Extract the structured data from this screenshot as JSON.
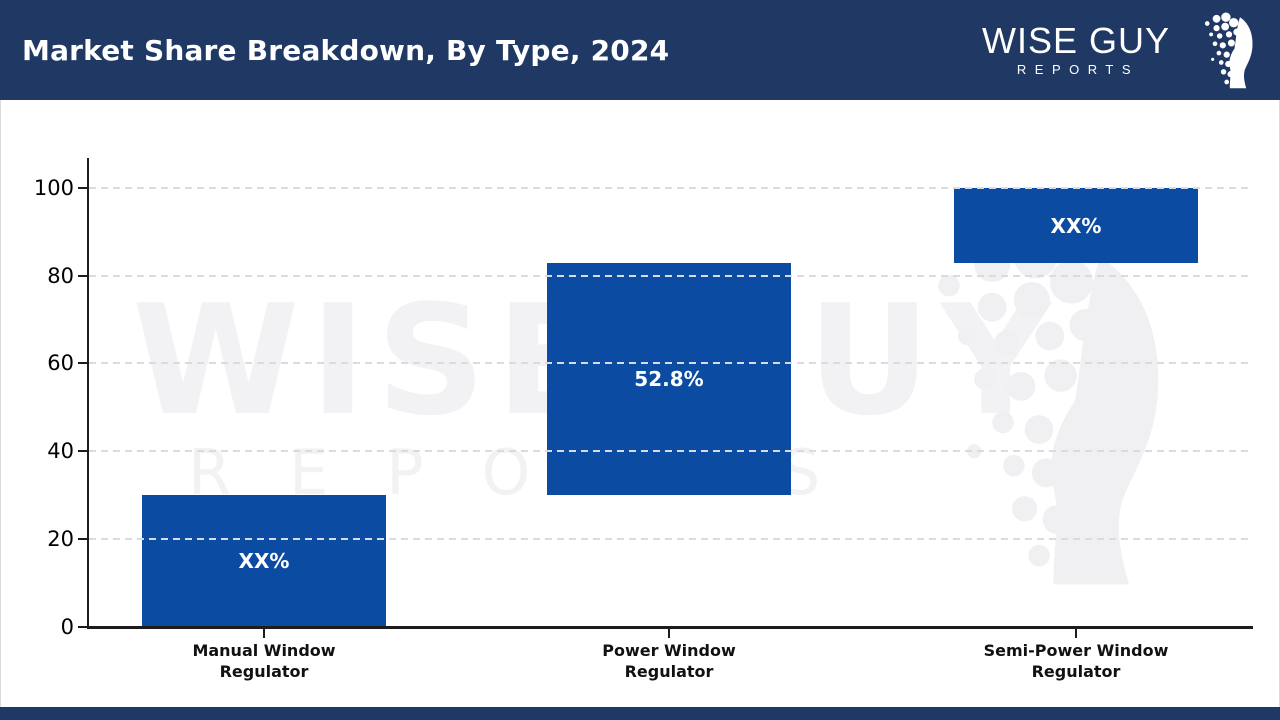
{
  "header": {
    "title": "Market Share Breakdown, By Type, 2024",
    "logo": {
      "name": "WISE GUY",
      "sub": "REPORTS"
    }
  },
  "watermark": {
    "line1": "WISE GUY",
    "line2": "REPORTS"
  },
  "chart_data": {
    "type": "bar",
    "variant": "floating-segment-percentage",
    "title": "Market Share Breakdown, By Type, 2024",
    "categories": [
      "Manual Window Regulator",
      "Power Window Regulator",
      "Semi-Power Window Regulator"
    ],
    "bars": [
      {
        "category": "Manual Window Regulator",
        "label": "XX%",
        "start": 0,
        "end": 30
      },
      {
        "category": "Power Window Regulator",
        "label": "52.8%",
        "value": 52.8,
        "start": 30,
        "end": 82.8
      },
      {
        "category": "Semi-Power Window Regulator",
        "label": "XX%",
        "start": 82.8,
        "end": 100
      }
    ],
    "xlabel": "",
    "ylabel": "",
    "ylim": [
      0,
      100
    ],
    "yticks": [
      0,
      20,
      40,
      60,
      80,
      100
    ],
    "grid": "horizontal-dashed",
    "legend": "none",
    "bar_color": "#0b4ba1"
  },
  "colors": {
    "header_bg": "#203864",
    "footer_bg": "#203864",
    "bar": "#0b4ba1",
    "gridline": "#d8dce1",
    "axis": "#1c1c1c",
    "title_text": "#ffffff",
    "watermark": "#f2f2f4"
  }
}
